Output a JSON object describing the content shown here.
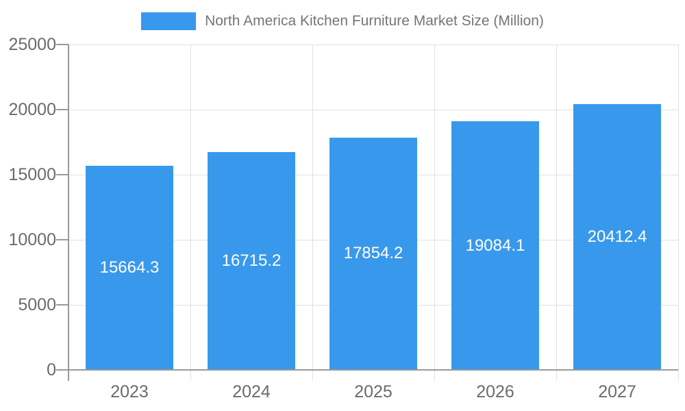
{
  "chart_data": {
    "type": "bar",
    "title": "North America Kitchen Furniture Market Size (Million)",
    "categories": [
      "2023",
      "2024",
      "2025",
      "2026",
      "2027"
    ],
    "values": [
      15664.3,
      16715.2,
      17854.2,
      19084.1,
      20412.4
    ],
    "value_labels": [
      "15664.3",
      "16715.2",
      "17854.2",
      "19084.1",
      "20412.4"
    ],
    "ylim": [
      0,
      25000
    ],
    "yticks": [
      0,
      5000,
      10000,
      15000,
      20000,
      25000
    ],
    "ytick_labels": [
      "0",
      "5000",
      "10000",
      "15000",
      "20000",
      "25000"
    ],
    "grid": true,
    "legend_position": "top",
    "value_label_position": "inside-center",
    "colors": {
      "bar": "#3899ec",
      "grid": "#e0e0e0",
      "axis": "#999999",
      "axis_text": "#6b6b6b",
      "legend_text": "#757575",
      "value_text": "#ffffff",
      "background": "#ffffff"
    }
  }
}
